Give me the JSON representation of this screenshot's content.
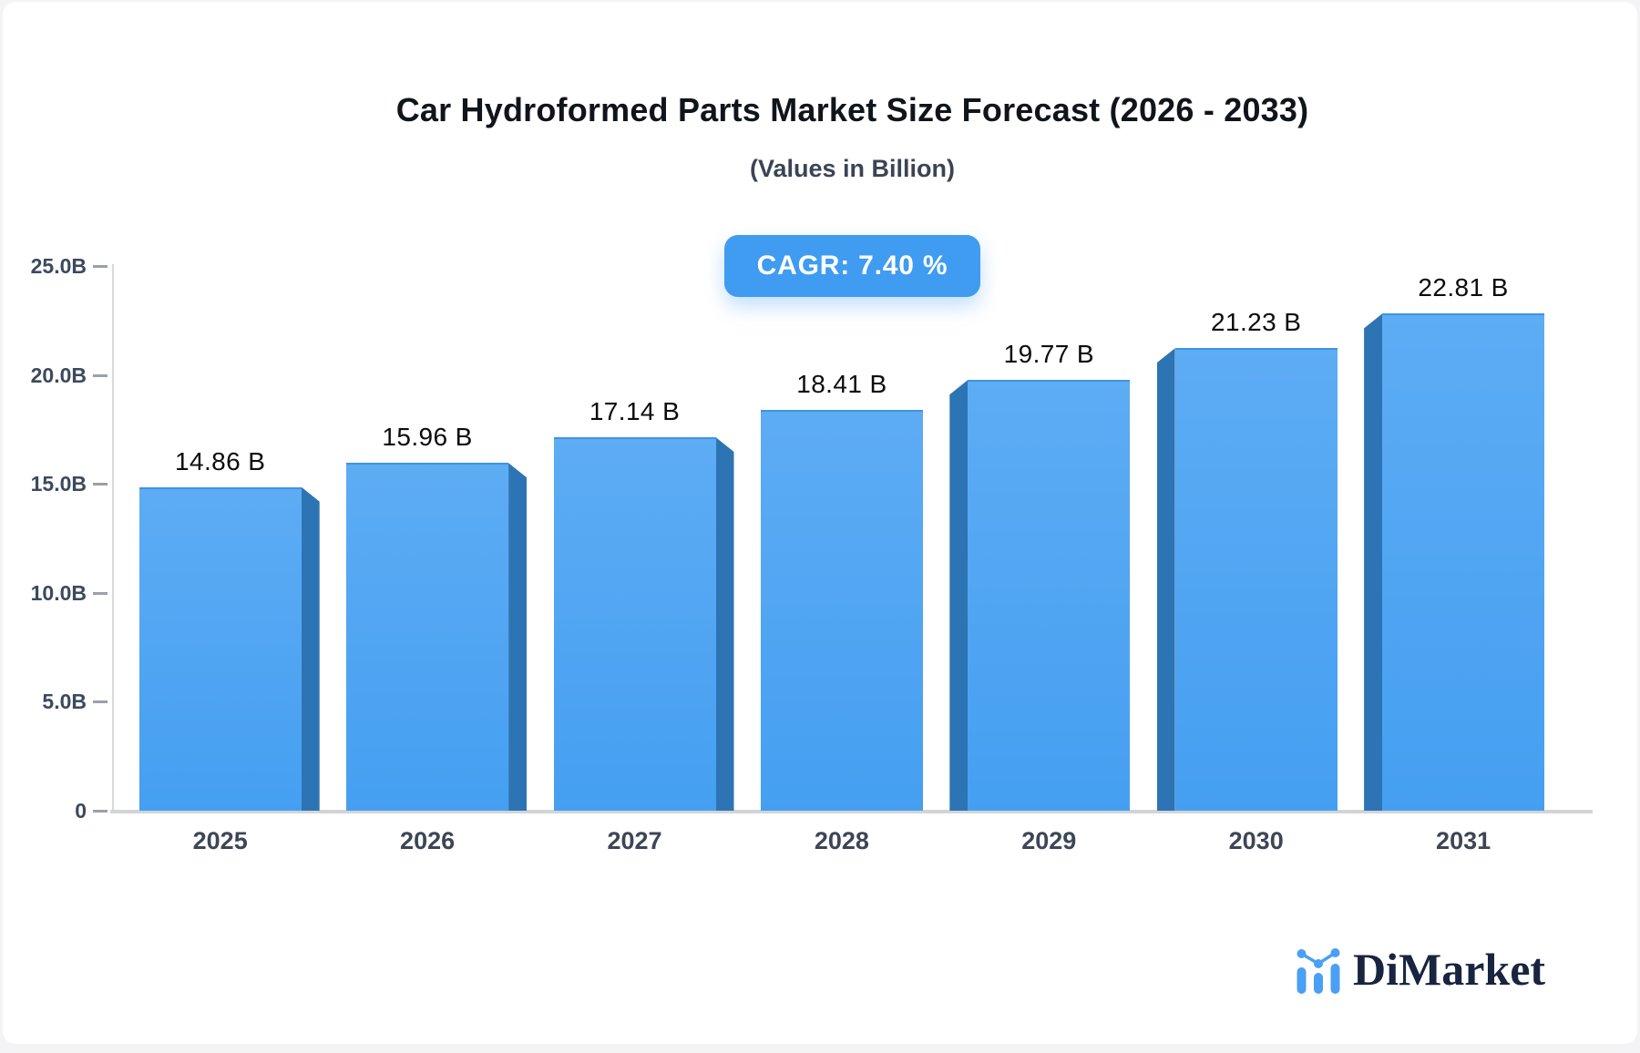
{
  "page": {
    "background": "#f4f4f6",
    "card_background": "#ffffff"
  },
  "header": {
    "title": "Car Hydroformed Parts Market Size Forecast (2026 - 2033)",
    "subtitle": "(Values in Billion)",
    "cagr_label": "CAGR: 7.40 %"
  },
  "chart_data": {
    "type": "bar",
    "title": "Car Hydroformed Parts Market Size Forecast (2026 - 2033)",
    "subtitle": "(Values in Billion)",
    "cagr_percent": 7.4,
    "categories": [
      "2025",
      "2026",
      "2027",
      "2028",
      "2029",
      "2030",
      "2031"
    ],
    "values": [
      14.86,
      15.96,
      17.14,
      18.41,
      19.77,
      21.23,
      22.81
    ],
    "value_labels": [
      "14.86 B",
      "15.96 B",
      "17.14 B",
      "18.41 B",
      "19.77 B",
      "21.23 B",
      "22.81 B"
    ],
    "xlabel": "",
    "ylabel": "",
    "ylim": [
      0,
      25
    ],
    "yticks": [
      0,
      5,
      10,
      15,
      20,
      25
    ],
    "ytick_labels": [
      "0",
      "5.0B",
      "10.0B",
      "15.0B",
      "20.0B",
      "25.0B"
    ],
    "grid": false,
    "legend": "none",
    "style": "pseudo-3d bars, side extrusion faces vanish toward center bar"
  },
  "colors": {
    "accent_blue": "#3f9cf0",
    "bar_face_top": "#5dacf4",
    "bar_face_bottom": "#459ff1",
    "bar_top_edge": "#3f93e2",
    "bar_side": "#2d74b4",
    "axis_line": "#d5d7db",
    "tick_dash": "#99a1ab",
    "tick_text": "#3b4a5e",
    "category_text": "#3d4656",
    "value_text": "#0c0c0c",
    "title_text": "#10151c",
    "subtitle_text": "#3b4454"
  },
  "branding": {
    "logo_text": "DiMarket",
    "logo_icon": "mini-bar-line-chart-icon",
    "logo_text_color": "#182440",
    "logo_icon_color": "#4aa0f4"
  }
}
